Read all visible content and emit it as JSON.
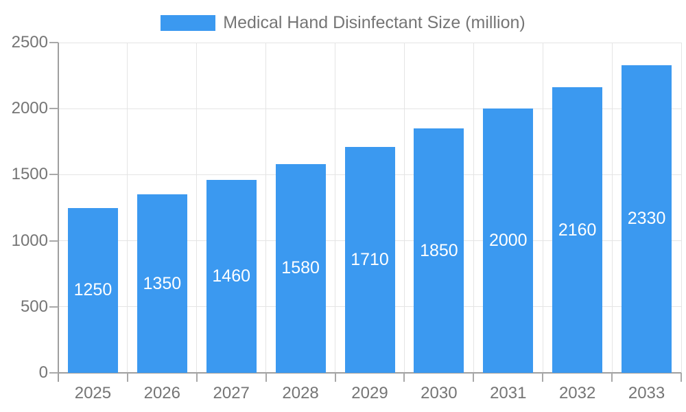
{
  "chart_data": {
    "type": "bar",
    "title": "Medical Hand Disinfectant Size (million)",
    "legend": {
      "position": "top",
      "entries": [
        "Medical Hand Disinfectant Size (million)"
      ]
    },
    "categories": [
      "2025",
      "2026",
      "2027",
      "2028",
      "2029",
      "2030",
      "2031",
      "2032",
      "2033"
    ],
    "values": [
      1250,
      1350,
      1460,
      1580,
      1710,
      1850,
      2000,
      2160,
      2330
    ],
    "bar_value_labels": [
      "1250",
      "1350",
      "1460",
      "1580",
      "1710",
      "1850",
      "2000",
      "2160",
      "2330"
    ],
    "xlabel": "",
    "ylabel": "",
    "ylim": [
      0,
      2500
    ],
    "yticks": [
      0,
      500,
      1000,
      1500,
      2000,
      2500
    ],
    "grid": true,
    "colors": {
      "bar": "#3b99f0",
      "axis": "#9e9e9e",
      "tick": "#a8a8a8",
      "grid": "#e4e4e4",
      "text": "#757575",
      "bar_label": "#ffffff",
      "background": "#ffffff"
    }
  }
}
